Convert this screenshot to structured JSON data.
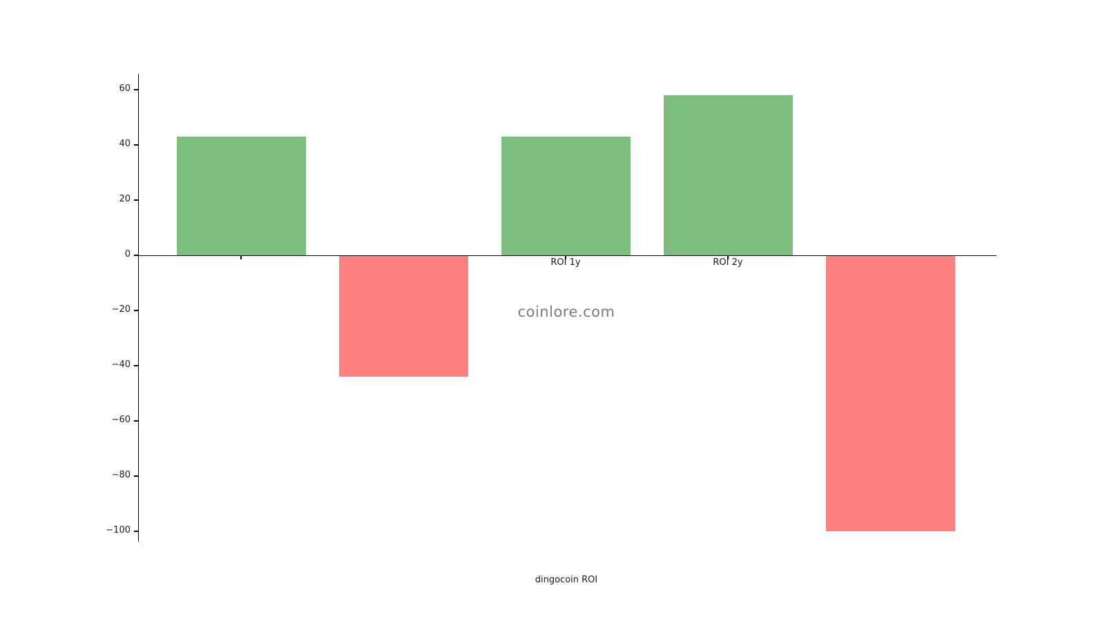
{
  "figure": {
    "watermark": "coinlore.com",
    "xlabel": "dingocoin ROI"
  },
  "chart_data": {
    "type": "bar",
    "title": "",
    "xlabel": "dingocoin ROI",
    "ylabel": "",
    "categories": [
      "",
      "",
      "ROI 1y",
      "ROI 2y",
      ""
    ],
    "values": [
      43,
      -44,
      43,
      58,
      -100
    ],
    "bar_colors": [
      "#7dbe7e",
      "#fe8181",
      "#7dbe7e",
      "#7dbe7e",
      "#fe8181"
    ],
    "positive_color": "#7dbe7e",
    "negative_color": "#fe8181",
    "y_ticks": [
      60,
      40,
      20,
      0,
      -20,
      -40,
      -60,
      -80,
      -100
    ],
    "y_tick_labels": [
      "60",
      "40",
      "20",
      "0",
      "−20",
      "−40",
      "−60",
      "−80",
      "−100"
    ],
    "ylim": [
      -103.75,
      65.75
    ],
    "grid": false,
    "legend_position": "none",
    "axis_color": "#000000",
    "text_color": "#1a1a1a",
    "watermark": "coinlore.com",
    "watermark_color": "#7c7c7c"
  }
}
